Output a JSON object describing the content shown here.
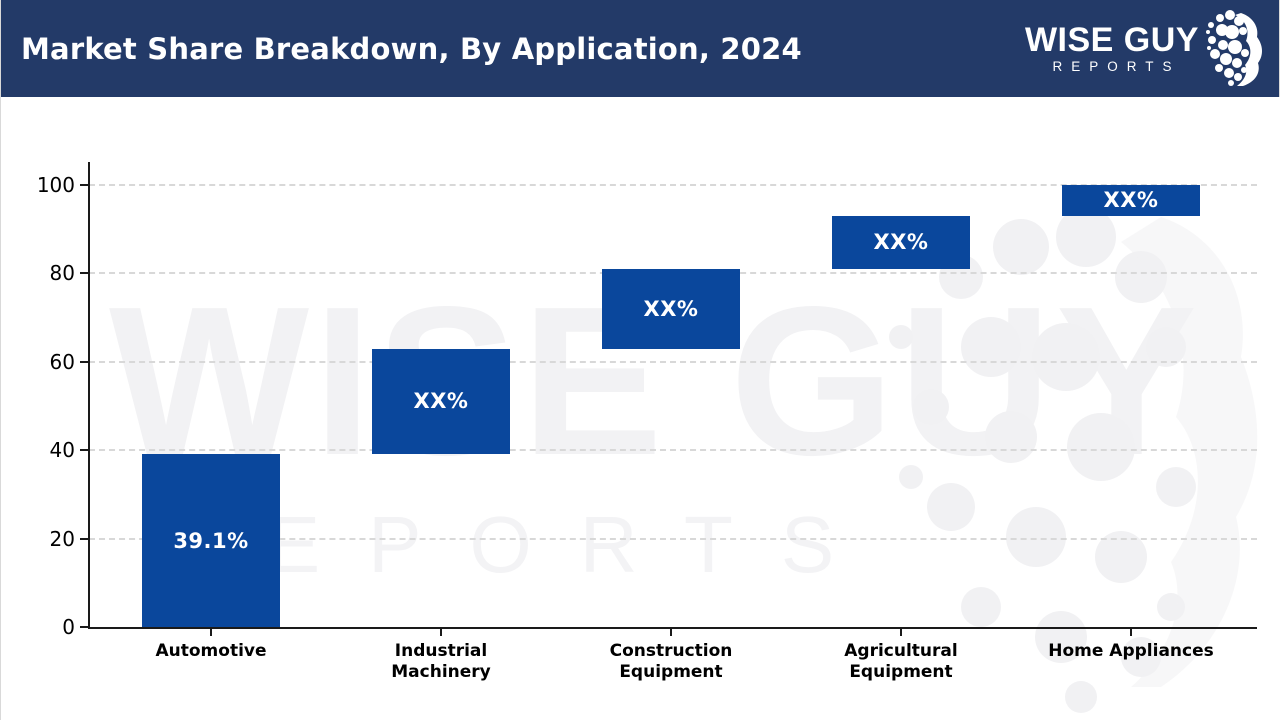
{
  "header": {
    "title": "Market Share Breakdown, By Application, 2024",
    "logo": {
      "wordmark": "WISE GUY",
      "subtext": "REPORTS"
    }
  },
  "watermark": {
    "line1": "WISE GUY",
    "line2": "REPORTS"
  },
  "chart_data": {
    "type": "bar",
    "subtype": "floating-waterfall",
    "title": "Market Share Breakdown, By Application, 2024",
    "categories": [
      "Automotive",
      "Industrial Machinery",
      "Construction Equipment",
      "Agricultural Equipment",
      "Home Appliances"
    ],
    "category_lines": [
      "Automotive",
      "Industrial\nMachinery",
      "Construction\nEquipment",
      "Agricultural\nEquipment",
      "Home Appliances"
    ],
    "segments": [
      {
        "category": "Automotive",
        "start": 0,
        "end": 39.1,
        "label": "39.1%"
      },
      {
        "category": "Industrial Machinery",
        "start": 39.1,
        "end": 63,
        "label": "XX%"
      },
      {
        "category": "Construction Equipment",
        "start": 63,
        "end": 81,
        "label": "XX%"
      },
      {
        "category": "Agricultural Equipment",
        "start": 81,
        "end": 93,
        "label": "XX%"
      },
      {
        "category": "Home Appliances",
        "start": 93,
        "end": 100,
        "label": "XX%"
      }
    ],
    "values_visible": [
      "39.1%",
      "XX%",
      "XX%",
      "XX%",
      "XX%"
    ],
    "xlabel": "",
    "ylabel": "",
    "y_ticks": [
      0,
      20,
      40,
      60,
      80,
      100
    ],
    "ylim": [
      0,
      105
    ],
    "grid": "horizontal dashed",
    "legend": "none",
    "bar_color": "#0A479C",
    "axis_color": "#1A1A1A",
    "gridline_color": "#D8D8D8"
  },
  "colors": {
    "header_bg": "#233A68",
    "page_bg": "#FFFFFF",
    "title_text": "#FFFFFF",
    "watermark_text": "#F2F2F4"
  }
}
